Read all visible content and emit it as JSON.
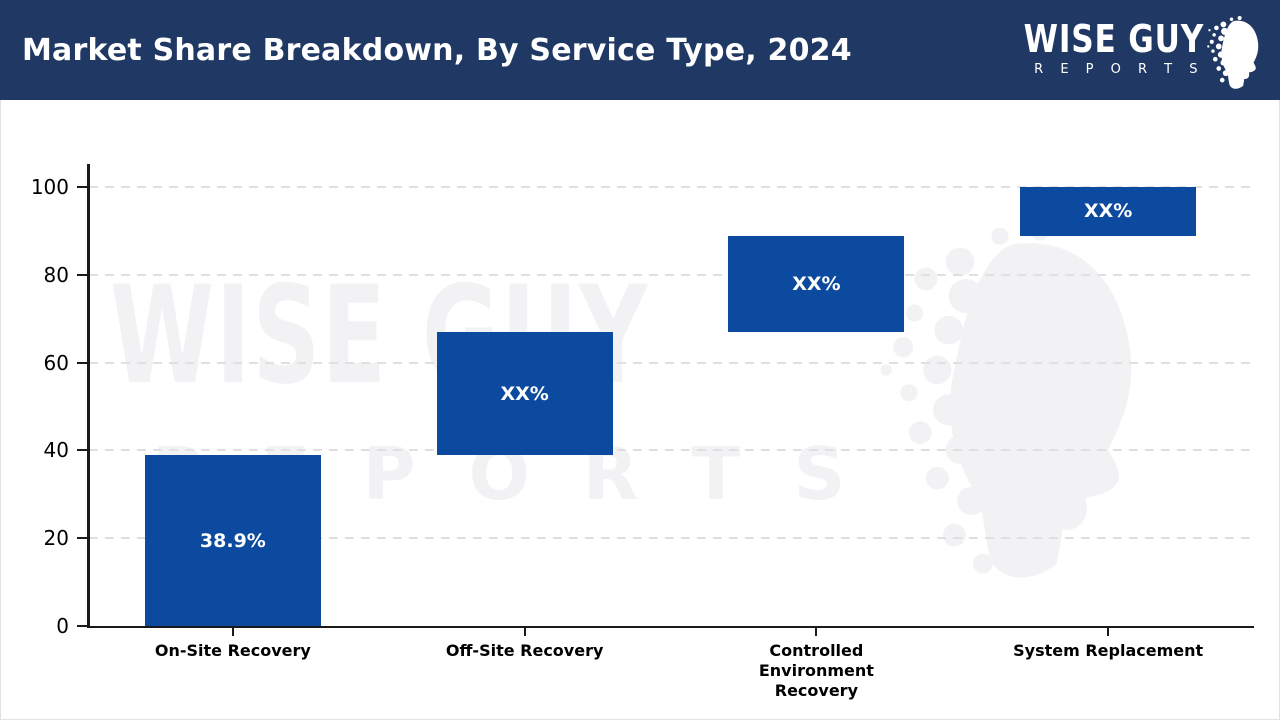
{
  "header": {
    "title": "Market Share Breakdown, By Service Type, 2024",
    "brand_line1": "WISE GUY",
    "brand_line2": "R E P O R T S"
  },
  "watermark": {
    "line1": "WISE GUY",
    "line2": "R E P O R T S"
  },
  "chart_data": {
    "type": "bar",
    "subtype": "waterfall",
    "title": "Market Share Breakdown, By Service Type, 2024",
    "unit": "percent",
    "categories": [
      "On-Site Recovery",
      "Off-Site Recovery",
      "Controlled Environment Recovery",
      "System Replacement"
    ],
    "category_lines": [
      [
        "On-Site Recovery"
      ],
      [
        "Off-Site Recovery"
      ],
      [
        "Controlled",
        "Environment",
        "Recovery"
      ],
      [
        "System Replacement"
      ]
    ],
    "segments": [
      {
        "category": "On-Site Recovery",
        "start": 0,
        "end": 38.9,
        "label": "38.9%"
      },
      {
        "category": "Off-Site Recovery",
        "start": 38.9,
        "end": 66.9,
        "label": "XX%"
      },
      {
        "category": "Controlled Environment Recovery",
        "start": 66.9,
        "end": 88.9,
        "label": "XX%"
      },
      {
        "category": "System Replacement",
        "start": 88.9,
        "end": 100,
        "label": "XX%"
      }
    ],
    "ylim": [
      0,
      100
    ],
    "yticks": [
      0,
      20,
      40,
      60,
      80,
      100
    ],
    "grid": "horizontal-dashed",
    "legend": "none",
    "colors": {
      "bar": "#0b4a9e",
      "bar_label": "#ffffff",
      "axis": "#1a1a1a",
      "grid": "#e0e0e0",
      "header_bg": "#203864",
      "header_text": "#ffffff",
      "watermark": "#f2f2f5"
    }
  }
}
